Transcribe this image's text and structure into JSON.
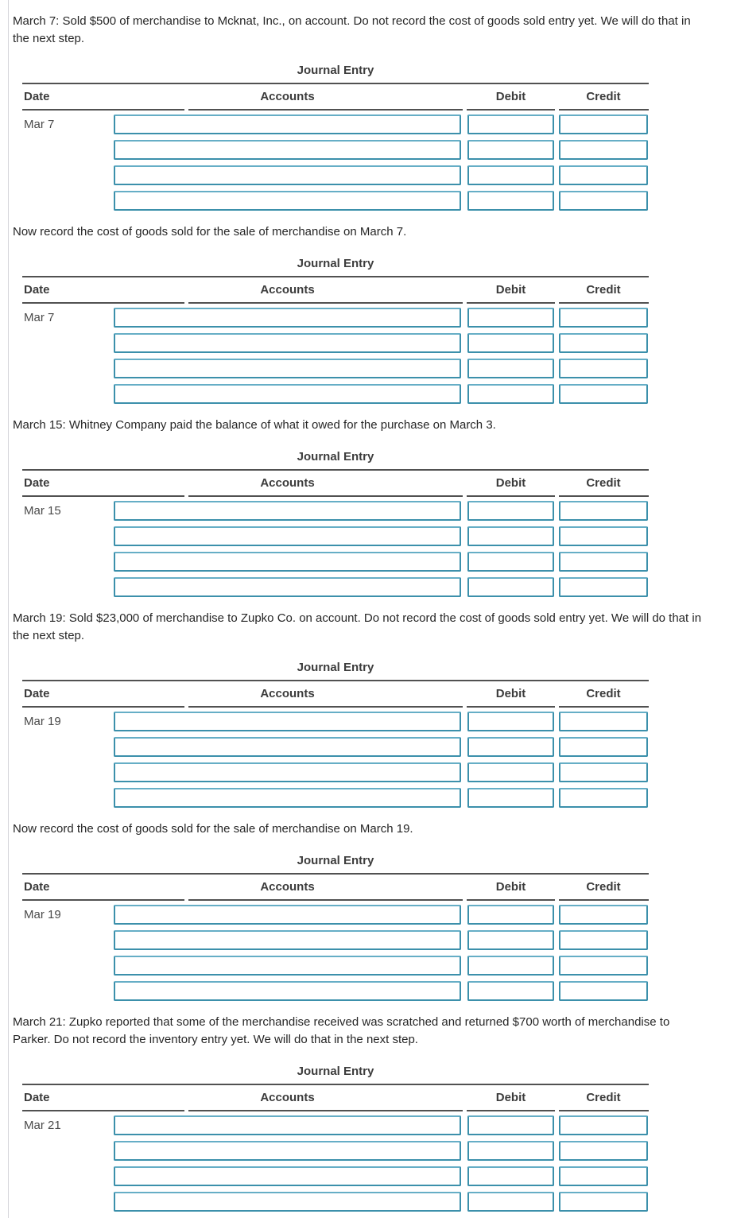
{
  "labels": {
    "journal_title": "Journal Entry",
    "date": "Date",
    "accounts": "Accounts",
    "debit": "Debit",
    "credit": "Credit"
  },
  "colors": {
    "input_border": "#3c90ab",
    "table_rule": "#515151",
    "heading_text": "#3c3c3c",
    "body_text": "#262626",
    "page_left_border": "#d5d5da"
  },
  "rows_per_table": 4,
  "sections": [
    {
      "instruction": "March 7: Sold $500 of merchandise to Mcknat, Inc., on account. Do not record the cost of goods sold entry yet. We will do that in the next step.",
      "date_label": "Mar 7"
    },
    {
      "instruction": "Now record the cost of goods sold for the sale of merchandise on March 7.",
      "date_label": "Mar 7"
    },
    {
      "instruction": "March 15: Whitney Company paid the balance of what it owed for the purchase on March 3.",
      "date_label": "Mar 15"
    },
    {
      "instruction": "March 19: Sold $23,000 of merchandise to Zupko Co. on account. Do not record the cost of goods sold entry yet. We will do that in the next step.",
      "date_label": "Mar 19"
    },
    {
      "instruction": "Now record the cost of goods sold for the sale of merchandise on March 19.",
      "date_label": "Mar 19"
    },
    {
      "instruction": "March 21: Zupko reported that some of the merchandise received was scratched and returned $700 worth of merchandise to Parker. Do not record the inventory entry yet. We will do that in the next step.",
      "date_label": "Mar 21"
    }
  ]
}
